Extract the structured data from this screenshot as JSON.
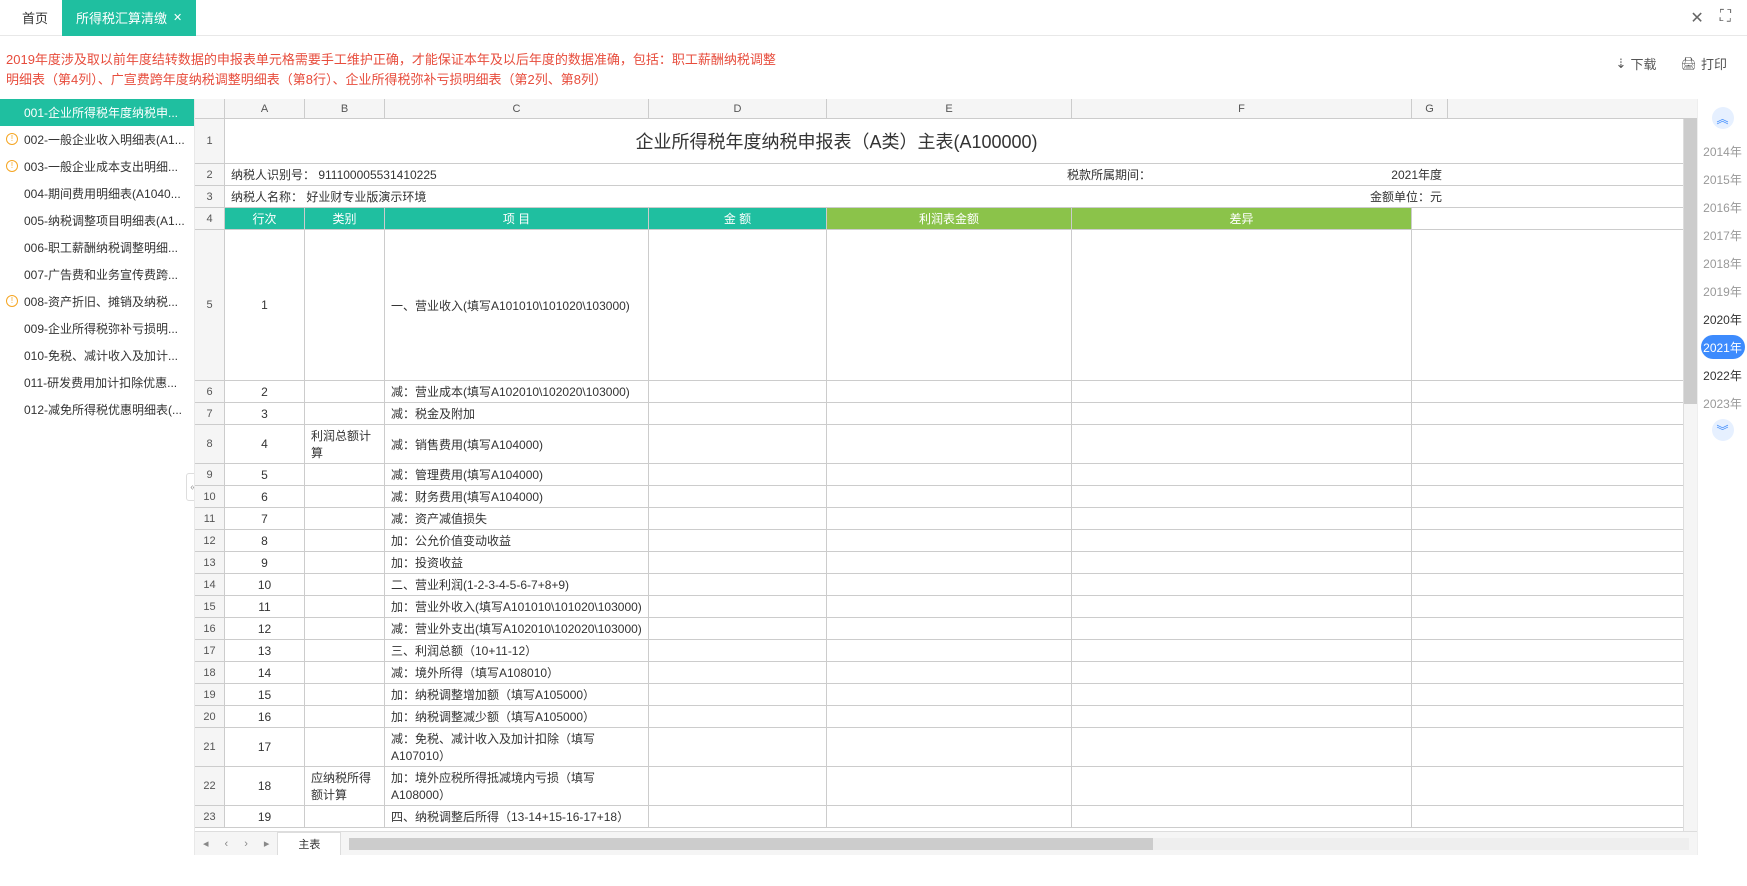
{
  "tabs": {
    "home": "首页",
    "active": "所得税汇算清缴"
  },
  "topActions": {
    "close": "✕",
    "expand": "⛶"
  },
  "warning": "2019年度涉及取以前年度结转数据的申报表单元格需要手工维护正确，才能保证本年及以后年度的数据准确，包括：职工薪酬纳税调整明细表（第4列）、广宣费跨年度纳税调整明细表（第8行）、企业所得税弥补亏损明细表（第2列、第8列）",
  "actions": {
    "download": "下载",
    "print": "打印"
  },
  "sidebar": [
    {
      "label": "001-企业所得税年度纳税申...",
      "icon": "none",
      "active": true
    },
    {
      "label": "002-一般企业收入明细表(A1...",
      "icon": "warn"
    },
    {
      "label": "003-一般企业成本支出明细...",
      "icon": "warn"
    },
    {
      "label": "004-期间费用明细表(A1040...",
      "icon": "none"
    },
    {
      "label": "005-纳税调整项目明细表(A1...",
      "icon": "none"
    },
    {
      "label": "006-职工薪酬纳税调整明细...",
      "icon": "none"
    },
    {
      "label": "007-广告费和业务宣传费跨...",
      "icon": "none"
    },
    {
      "label": "008-资产折旧、摊销及纳税...",
      "icon": "warn"
    },
    {
      "label": "009-企业所得税弥补亏损明...",
      "icon": "none"
    },
    {
      "label": "010-免税、减计收入及加计...",
      "icon": "none"
    },
    {
      "label": "011-研发费用加计扣除优惠...",
      "icon": "none"
    },
    {
      "label": "012-减免所得税优惠明细表(...",
      "icon": "none"
    }
  ],
  "years": [
    {
      "label": "2014年",
      "state": "disabled"
    },
    {
      "label": "2015年",
      "state": "disabled"
    },
    {
      "label": "2016年",
      "state": "disabled"
    },
    {
      "label": "2017年",
      "state": "disabled"
    },
    {
      "label": "2018年",
      "state": "disabled"
    },
    {
      "label": "2019年",
      "state": "disabled"
    },
    {
      "label": "2020年",
      "state": "enabled"
    },
    {
      "label": "2021年",
      "state": "active"
    },
    {
      "label": "2022年",
      "state": "enabled"
    },
    {
      "label": "2023年",
      "state": "disabled"
    }
  ],
  "sheet": {
    "columns": [
      "A",
      "B",
      "C",
      "D",
      "E",
      "F",
      "G"
    ],
    "title": "企业所得税年度纳税申报表（A类）主表(A100000)",
    "taxpayerIdLabel": "纳税人识别号：",
    "taxpayerId": "911100005531410225",
    "periodLabel": "税款所属期间：",
    "periodValue": "2021年度",
    "taxpayerNameLabel": "纳税人名称：",
    "taxpayerName": "好业财专业版演示环境",
    "unitLabel": "金额单位：元",
    "headers": {
      "rowNo": "行次",
      "category": "类别",
      "item": "项   目",
      "amount": "金   额",
      "profitAmt": "利润表金额",
      "diff": "差异"
    },
    "category1": "利润总额计算",
    "category2": "应纳税所得额计算",
    "rows": [
      {
        "n": "1",
        "item": "一、营业收入(填写A101010\\101020\\103000)",
        "big": true
      },
      {
        "n": "2",
        "item": "减：营业成本(填写A102010\\102020\\103000)"
      },
      {
        "n": "3",
        "item": "减：税金及附加"
      },
      {
        "n": "4",
        "item": "减：销售费用(填写A104000)"
      },
      {
        "n": "5",
        "item": "减：管理费用(填写A104000)"
      },
      {
        "n": "6",
        "item": "减：财务费用(填写A104000)"
      },
      {
        "n": "7",
        "item": "减：资产减值损失"
      },
      {
        "n": "8",
        "item": "加：公允价值变动收益"
      },
      {
        "n": "9",
        "item": "加：投资收益"
      },
      {
        "n": "10",
        "item": "二、营业利润(1-2-3-4-5-6-7+8+9)"
      },
      {
        "n": "11",
        "item": "加：营业外收入(填写A101010\\101020\\103000)"
      },
      {
        "n": "12",
        "item": "减：营业外支出(填写A102010\\102020\\103000)"
      },
      {
        "n": "13",
        "item": "三、利润总额（10+11-12）"
      },
      {
        "n": "14",
        "item": "减：境外所得（填写A108010）"
      },
      {
        "n": "15",
        "item": "加：纳税调整增加额（填写A105000）"
      },
      {
        "n": "16",
        "item": "加：纳税调整减少额（填写A105000）"
      },
      {
        "n": "17",
        "item": "减：免税、减计收入及加计扣除（填写A107010）"
      },
      {
        "n": "18",
        "item": "加：境外应税所得抵减境内亏损（填写A108000）"
      },
      {
        "n": "19",
        "item": "四、纳税调整后所得（13-14+15-16-17+18）"
      }
    ],
    "tabName": "主表"
  }
}
